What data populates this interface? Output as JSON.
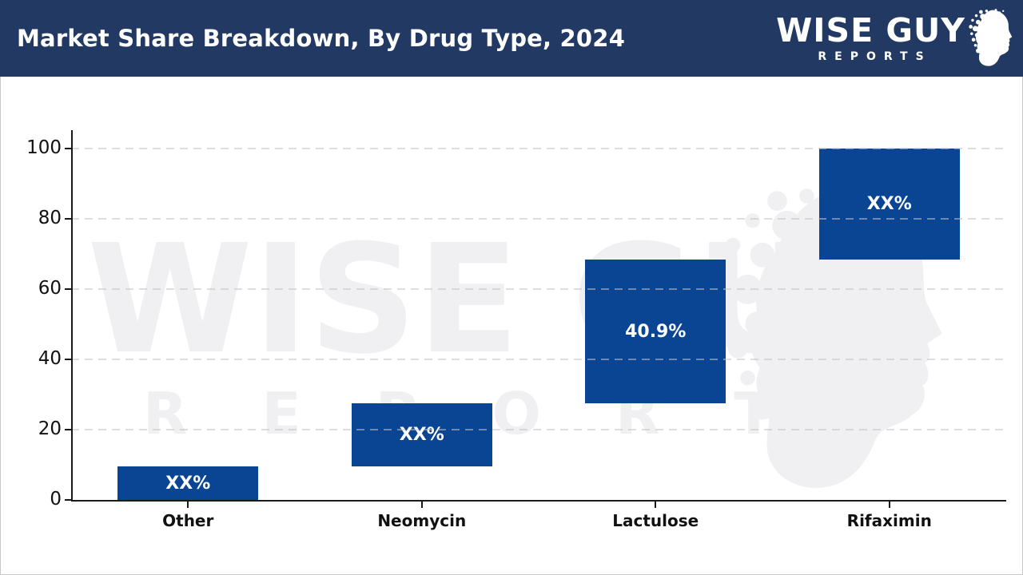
{
  "header": {
    "title": "Market Share Breakdown, By Drug Type, 2024",
    "bg_color": "#223a63",
    "logo": {
      "line1": "WISE GUY",
      "line2": "REPORTS"
    }
  },
  "watermark": {
    "line1": "WISE GUY",
    "line2": "R E P O R T S"
  },
  "chart_data": {
    "type": "bar",
    "subtype": "floating-waterfall",
    "title": "Market Share Breakdown, By Drug Type, 2024",
    "categories": [
      "Other",
      "Neomycin",
      "Lactulose",
      "Rifaximin"
    ],
    "segments": [
      {
        "category": "Other",
        "start": 0,
        "end": 9.5,
        "label": "XX%"
      },
      {
        "category": "Neomycin",
        "start": 9.5,
        "end": 27.5,
        "label": "XX%"
      },
      {
        "category": "Lactulose",
        "start": 27.5,
        "end": 68.4,
        "label": "40.9%"
      },
      {
        "category": "Rifaximin",
        "start": 68.4,
        "end": 100,
        "label": "XX%"
      }
    ],
    "ylim": [
      0,
      100
    ],
    "yticks": [
      0,
      20,
      40,
      60,
      80,
      100
    ],
    "xlabel": "",
    "ylabel": "",
    "grid": "dashed-horizontal",
    "legend": "none",
    "bar_color": "#0a4594",
    "bar_label_color": "#ffffff",
    "axis_color": "#1a1a1a",
    "grid_color": "#e2e2e2"
  }
}
